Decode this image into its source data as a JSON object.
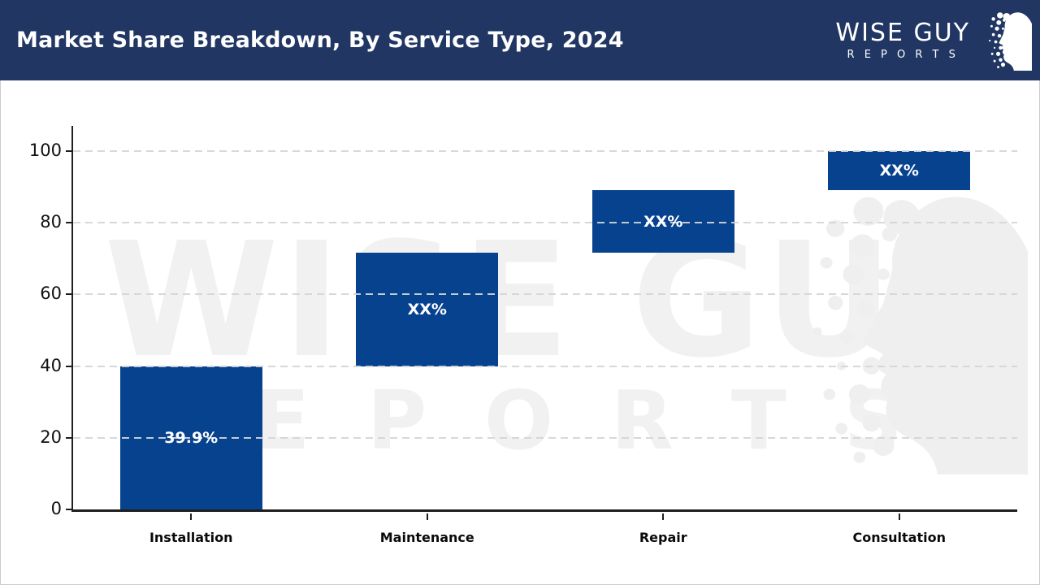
{
  "page": {
    "background": "#ffffff",
    "border_color": "#cccccc"
  },
  "header": {
    "title": "Market Share Breakdown, By Service Type, 2024",
    "background_color": "#213663",
    "text_color": "#ffffff",
    "logo": {
      "brand_line1": "WISE GUY",
      "brand_line2": "R E P O R T S",
      "icon": "face-profile-dots"
    }
  },
  "watermark": {
    "line1": "WISE GUY",
    "line2": "R E P O R T S",
    "color": "#f1f1f1"
  },
  "chart_data": {
    "type": "bar",
    "variant": "waterfall",
    "title": "Market Share Breakdown, By Service Type, 2024",
    "categories": [
      "Installation",
      "Maintenance",
      "Repair",
      "Consultation"
    ],
    "segments": [
      {
        "category": "Installation",
        "start": 0,
        "end": 39.9,
        "label": "39.9%"
      },
      {
        "category": "Maintenance",
        "start": 39.9,
        "end": 71.6,
        "label": "XX%"
      },
      {
        "category": "Repair",
        "start": 71.6,
        "end": 89.1,
        "label": "XX%"
      },
      {
        "category": "Consultation",
        "start": 89.1,
        "end": 100,
        "label": "XX%"
      }
    ],
    "xlabel": "",
    "ylabel": "",
    "yticks": [
      0,
      20,
      40,
      60,
      80,
      100
    ],
    "ylim": [
      0,
      107
    ],
    "grid": "horizontal-dashed",
    "gridline_color": "#d5d5d5",
    "legend": "none",
    "bar_color": "#07428f",
    "bar_label_color": "#ffffff",
    "axis_color": "#1f1f1f"
  }
}
